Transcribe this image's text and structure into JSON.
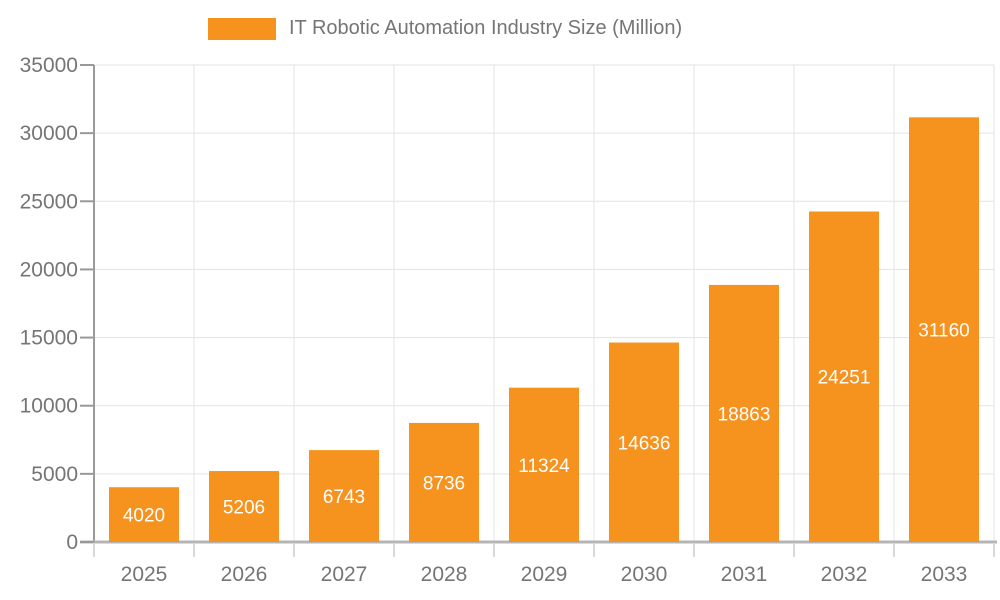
{
  "legend": {
    "label": "IT Robotic Automation Industry Size (Million)"
  },
  "chart_data": {
    "type": "bar",
    "title": "",
    "xlabel": "",
    "ylabel": "",
    "categories": [
      "2025",
      "2026",
      "2027",
      "2028",
      "2029",
      "2030",
      "2031",
      "2032",
      "2033"
    ],
    "series": [
      {
        "name": "IT Robotic Automation Industry Size (Million)",
        "values": [
          4020,
          5206,
          6743,
          8736,
          11324,
          14636,
          18863,
          24251,
          31160
        ]
      }
    ],
    "ylim": [
      0,
      35000
    ],
    "ytick_step": 5000,
    "yticks": [
      0,
      5000,
      10000,
      15000,
      20000,
      25000,
      30000,
      35000
    ],
    "grid": true,
    "legend_position": "top",
    "value_label_position": "inside-center",
    "colors": {
      "bar": "#F6921E",
      "value_label": "#FFFFFF",
      "axis_text": "#757575",
      "gridline": "#E3E3E3",
      "y_axis_line": "#9A9A9A",
      "baseline": "#B5B5B5",
      "x_tick": "#D9D9D9",
      "y_tick": "#999999",
      "background": "#FFFFFF"
    }
  }
}
